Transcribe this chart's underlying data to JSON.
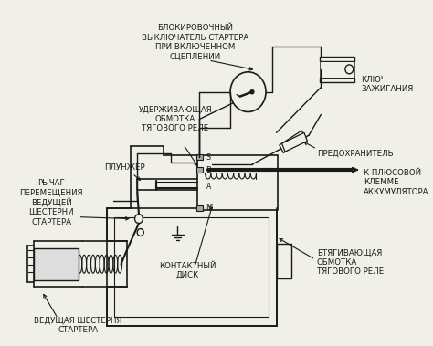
{
  "background_color": "#f0efe8",
  "line_color": "#1a1a1a",
  "text_color": "#1a1a1a",
  "labels": {
    "top_center": "БЛОКИРОВОЧНЫЙ\nВЫКЛЮЧАТЕЛЬ СТАРТЕРА\nПРИ ВКЛЮЧЕННОМ\nСЦЕПЛЕНИИ",
    "top_right": "КЛЮЧ\nЗАЖИГАНИЯ",
    "mid_right1": "ПРЕДОХРАНИТЕЛЬ",
    "mid_right2": "К ПЛЮСОВОЙ\nКЛЕММЕ\nАККУМУЛЯТОРА",
    "mid_center": "УДЕРЖИВАЮЩАЯ\nОБМОТКА\nТЯГОВОГО РЕЛЕ",
    "left1": "ПЛУНЖЕР",
    "left2": "РЫЧАГ\nПЕРЕМЕЩЕНИЯ\nВЕДУЩЕЙ\nШЕСТЕРНИ\nСТАРТЕРА",
    "bottom_center": "КОНТАКТНЫЙ\nДИСК",
    "bottom_left": "ВЕДУЩАЯ ШЕСТЕРНЯ\nСТАРТЕРА",
    "bottom_right": "ВТЯГИВАЮЩАЯ\nОБМОТКА\nТЯГОВОГО РЕЛЕ",
    "S": "S",
    "B": "B",
    "M": "M",
    "A": "A"
  },
  "label_fontsize": 6.2,
  "figsize": [
    4.74,
    3.79
  ],
  "dpi": 100
}
